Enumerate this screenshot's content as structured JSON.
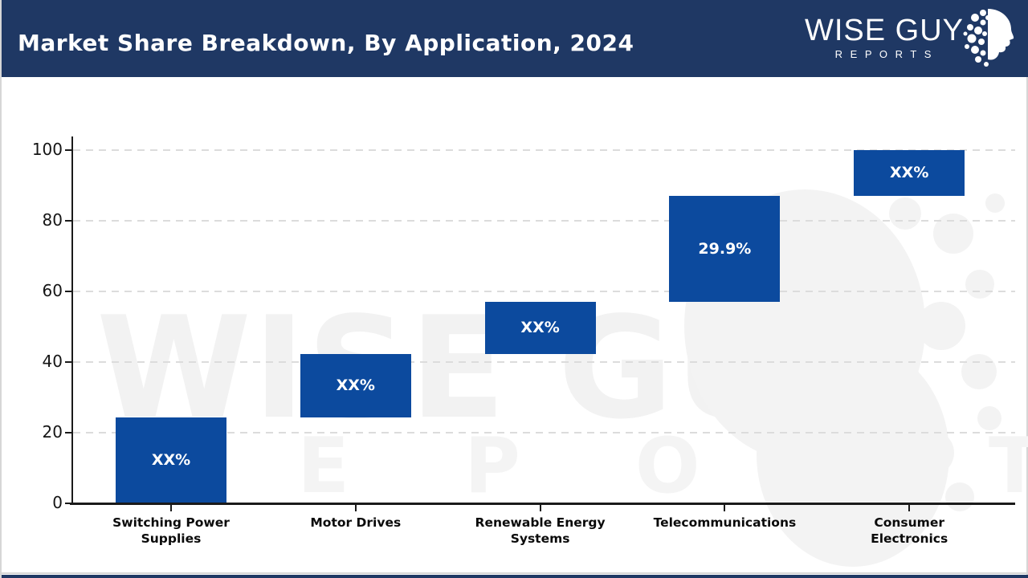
{
  "header": {
    "title": "Market Share Breakdown, By Application, 2024",
    "logo": {
      "name": "WISE GUY",
      "sub": "R E P O R T S"
    }
  },
  "watermark": {
    "line1": "WISE GUY",
    "line2": "R E P O R T S"
  },
  "colors": {
    "header_bg": "#1f3864",
    "bar": "#0c4a9e",
    "grid": "#dcdcdc",
    "axis": "#1a1a1a",
    "frame_border": "#d6d6d6",
    "footer_bar": "#1f3864",
    "watermark": "#f2f2f2",
    "bar_label": "#ffffff"
  },
  "chart_data": {
    "type": "bar",
    "subtype": "waterfall",
    "title": "Market Share Breakdown, By Application, 2024",
    "categories": [
      "Switching Power Supplies",
      "Motor Drives",
      "Renewable Energy Systems",
      "Telecommunications",
      "Consumer Electronics"
    ],
    "tick_labels": [
      "Switching Power\nSupplies",
      "Motor Drives",
      "Renewable Energy\nSystems",
      "Telecommunications",
      "Consumer\nElectronics"
    ],
    "segments": [
      {
        "base": 0,
        "top": 24.4,
        "label": "XX%"
      },
      {
        "base": 24.4,
        "top": 42.3,
        "label": "XX%"
      },
      {
        "base": 42.3,
        "top": 57.0,
        "label": "XX%"
      },
      {
        "base": 57.0,
        "top": 86.9,
        "label": "29.9%"
      },
      {
        "base": 86.9,
        "top": 100,
        "label": "XX%"
      }
    ],
    "values_pct": [
      24.4,
      17.9,
      14.7,
      29.9,
      13.1
    ],
    "ylim": [
      0,
      100
    ],
    "yticks": [
      0,
      20,
      40,
      60,
      80,
      100
    ],
    "grid": "horizontal-dashed",
    "legend": "none",
    "bar_color": "#0c4a9e",
    "label_color": "#ffffff"
  }
}
